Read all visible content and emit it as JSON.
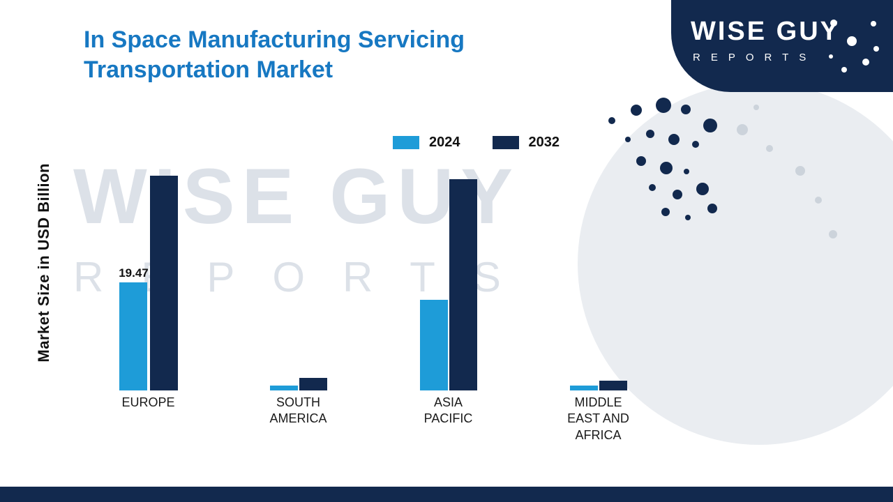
{
  "header": {
    "title": "In Space Manufacturing Servicing Transportation Market"
  },
  "logo": {
    "line1": "WISE GUY",
    "line2": "REPORTS"
  },
  "watermark": {
    "line1": "WISE GUY",
    "line2": "REPORTS"
  },
  "y_axis_label": "Market Size in USD Billion",
  "legend": {
    "items": [
      {
        "label": "2024",
        "color": "#1E9CD8"
      },
      {
        "label": "2032",
        "color": "#12294E"
      }
    ]
  },
  "colors": {
    "title_blue": "#1778C2",
    "bar_blue": "#1E9CD8",
    "bar_navy": "#12294E",
    "footer_navy": "#12294E",
    "watermark_gray": "#DCE1E8"
  },
  "chart_data": {
    "type": "bar",
    "title": "In Space Manufacturing Servicing Transportation Market",
    "ylabel": "Market Size in USD Billion",
    "xlabel": "",
    "categories": [
      "EUROPE",
      "SOUTH AMERICA",
      "ASIA PACIFIC",
      "MIDDLE EAST AND AFRICA"
    ],
    "series": [
      {
        "name": "2024",
        "color": "#1E9CD8",
        "values": [
          19.47,
          0.9,
          16.4,
          0.9
        ]
      },
      {
        "name": "2032",
        "color": "#12294E",
        "values": [
          38.8,
          2.3,
          38.1,
          1.7
        ]
      }
    ],
    "data_labels": [
      [
        "19.47",
        "",
        "",
        ""
      ],
      [
        "",
        "",
        "",
        ""
      ]
    ],
    "ylim": [
      0,
      40
    ],
    "grid": false,
    "legend_position": "top"
  }
}
